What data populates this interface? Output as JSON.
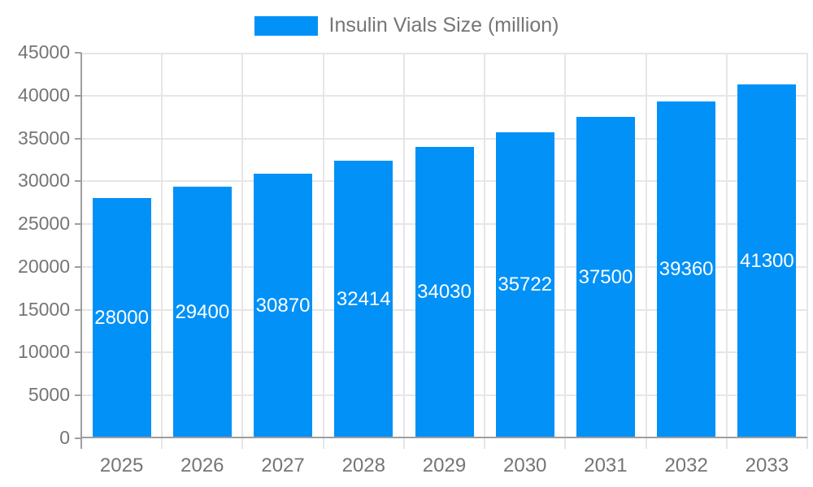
{
  "chart_data": {
    "type": "bar",
    "title": "",
    "legend": "Insulin Vials Size (million)",
    "legend_position": "top",
    "categories": [
      "2025",
      "2026",
      "2027",
      "2028",
      "2029",
      "2030",
      "2031",
      "2032",
      "2033"
    ],
    "values": [
      28000,
      29400,
      30870,
      32414,
      34030,
      35722,
      37500,
      39360,
      41300
    ],
    "xlabel": "",
    "ylabel": "",
    "ylim": [
      0,
      45000
    ],
    "ytick_step": 5000,
    "yticks": [
      0,
      5000,
      10000,
      15000,
      20000,
      25000,
      30000,
      35000,
      40000,
      45000
    ],
    "grid": true,
    "colors": {
      "bar": "#0191f7",
      "bar_label": "#ffffff",
      "axis_text": "#757575",
      "gridline": "#e6e6e6",
      "axis_line": "#9e9e9e",
      "background": "#ffffff"
    }
  }
}
